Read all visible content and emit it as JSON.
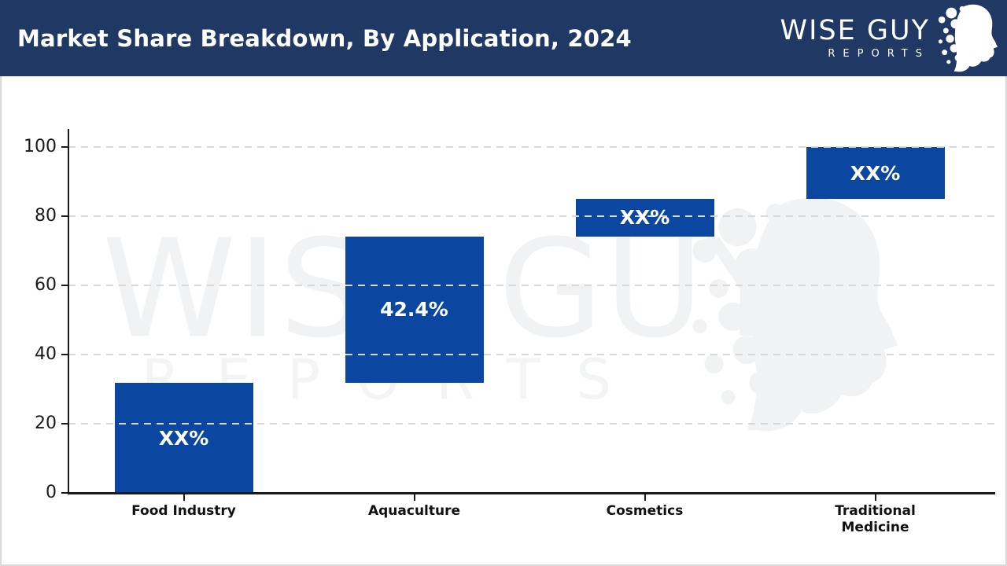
{
  "header": {
    "title": "Market Share Breakdown, By Application, 2024",
    "brand": {
      "line1": "WISE GUY",
      "line2": "REPORTS"
    }
  },
  "watermark": {
    "line1": "WISE GUY",
    "line2": "REPORTS"
  },
  "chart_data": {
    "type": "bar",
    "subtype": "floating-waterfall",
    "title": "Market Share Breakdown, By Application, 2024",
    "categories": [
      "Food Industry",
      "Aquaculture",
      "Cosmetics",
      "Traditional Medicine"
    ],
    "segments": [
      {
        "category": "Food Industry",
        "start": 0,
        "end": 31.8,
        "value": 31.8,
        "label": "XX%"
      },
      {
        "category": "Aquaculture",
        "start": 31.8,
        "end": 74.2,
        "value": 42.4,
        "label": "42.4%"
      },
      {
        "category": "Cosmetics",
        "start": 74.2,
        "end": 85.0,
        "value": 10.8,
        "label": "XX%"
      },
      {
        "category": "Traditional Medicine",
        "start": 85.0,
        "end": 100.0,
        "value": 15.0,
        "label": "XX%"
      }
    ],
    "xlabel": "",
    "ylabel": "",
    "ylim": [
      0,
      100
    ],
    "yticks": [
      0,
      20,
      40,
      60,
      80,
      100
    ],
    "legend": null,
    "grid": "horizontal-dashed",
    "colors": {
      "bar": "#0b47a1",
      "bar_label": "#ffffff",
      "grid": "#d8d8d8",
      "axis": "#1a1a1a",
      "tick_label": "#1a1a1a",
      "header_bg": "#1f3864",
      "header_text": "#ffffff",
      "watermark": "#f1f2f4"
    }
  }
}
